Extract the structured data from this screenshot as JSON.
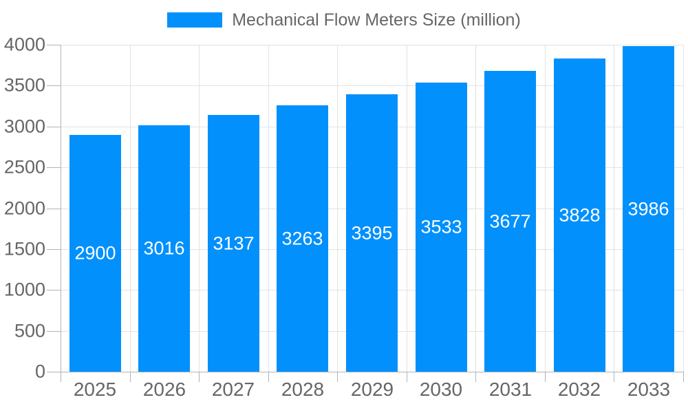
{
  "legend": {
    "label": "Mechanical Flow Meters Size (million)",
    "swatch_color": "#0190fc"
  },
  "colors": {
    "bar": "#0190fc",
    "bar_label_text": "#ffffff",
    "axis_text": "#666666",
    "axis_line": "#b3b3b3",
    "gridline": "#e2e2e2",
    "background": "#ffffff"
  },
  "chart_data": {
    "type": "bar",
    "title": "Mechanical Flow Meters Size (million)",
    "categories": [
      "2025",
      "2026",
      "2027",
      "2028",
      "2029",
      "2030",
      "2031",
      "2032",
      "2033"
    ],
    "series": [
      {
        "name": "Mechanical Flow Meters Size (million)",
        "values": [
          2900,
          3016,
          3137,
          3263,
          3395,
          3533,
          3677,
          3828,
          3986
        ]
      }
    ],
    "xlabel": "",
    "ylabel": "",
    "ylim": [
      0,
      4000
    ],
    "yticks": [
      0,
      500,
      1000,
      1500,
      2000,
      2500,
      3000,
      3500,
      4000
    ],
    "grid": true,
    "legend_position": "top",
    "bar_labels_shown": true,
    "bar_label_position": "center"
  }
}
